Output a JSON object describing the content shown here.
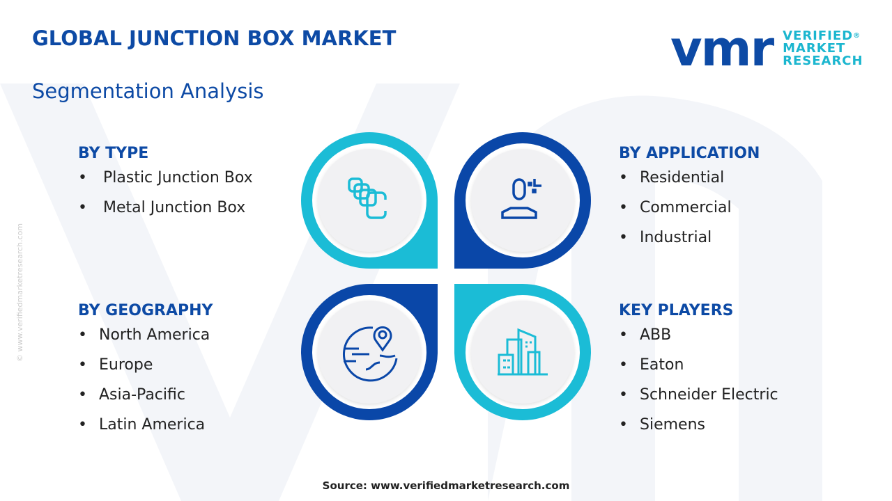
{
  "header": {
    "title": "GLOBAL JUNCTION BOX MARKET",
    "subtitle": "Segmentation Analysis"
  },
  "logo": {
    "mark": "vmr",
    "line1": "VERIFIED",
    "line2": "MARKET",
    "line3": "RESEARCH",
    "reg": "®"
  },
  "colors": {
    "cyan": "#1bbcd6",
    "blue": "#0a47a8",
    "title": "#0d4aa5"
  },
  "sections": [
    {
      "title": "BY TYPE",
      "items": [
        "Plastic Junction Box",
        "Metal Junction Box"
      ],
      "icon": "boxes-icon"
    },
    {
      "title": "BY APPLICATION",
      "items": [
        "Residential",
        "Commercial",
        "Industrial"
      ],
      "icon": "person-icon"
    },
    {
      "title": "BY GEOGRAPHY",
      "items": [
        "North America",
        "Europe",
        "Asia-Pacific",
        "Latin America"
      ],
      "icon": "globe-pin-icon"
    },
    {
      "title": "KEY PLAYERS",
      "items": [
        "ABB",
        "Eaton",
        "Schneider Electric",
        "Siemens"
      ],
      "icon": "buildings-icon"
    }
  ],
  "bullet": "•",
  "source": "Source: www.verifiedmarketresearch.com",
  "side_text": "© www.verifiedmarketresearch.com"
}
